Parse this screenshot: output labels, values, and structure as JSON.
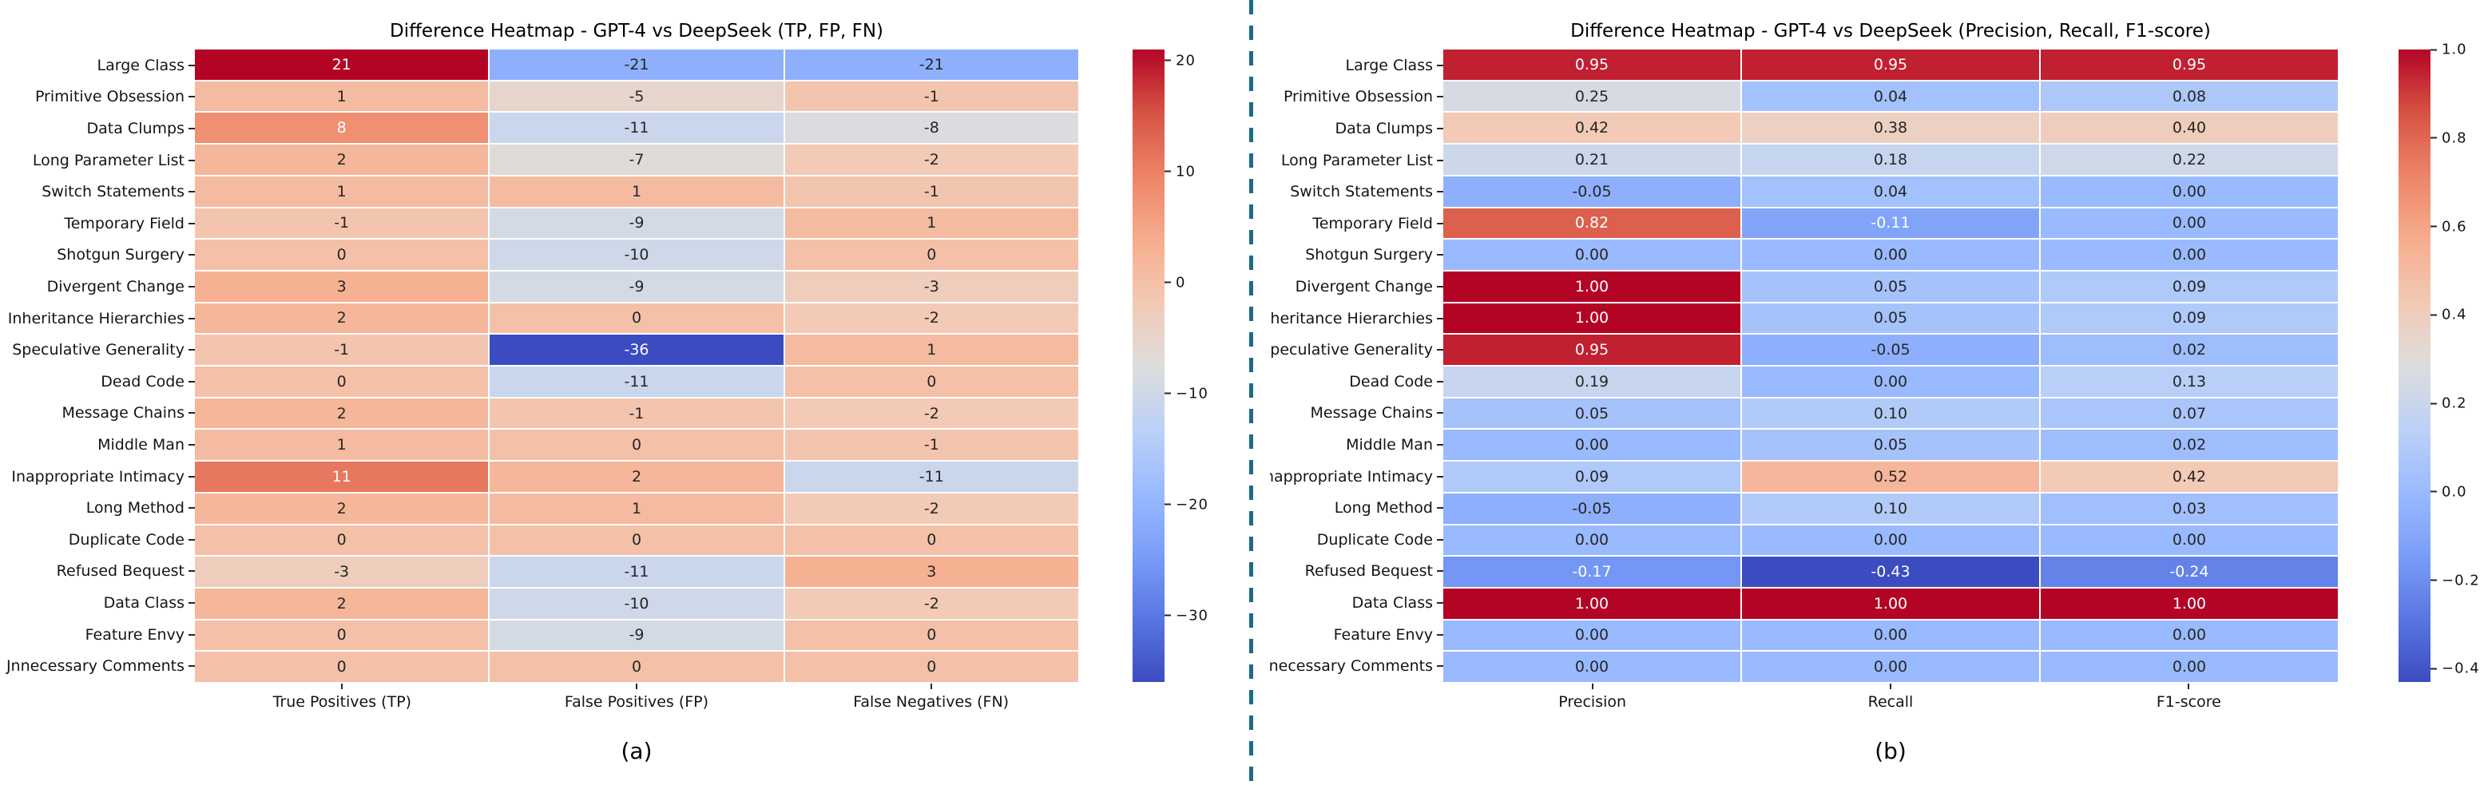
{
  "divider": {
    "color": "#1a6b8f",
    "style": "dashed-vertical"
  },
  "chart_data": [
    {
      "type": "heatmap",
      "title": "Difference Heatmap - GPT-4 vs DeepSeek (TP, FP, FN)",
      "caption": "(a)",
      "columns": [
        "True Positives (TP)",
        "False Positives (FP)",
        "False Negatives (FN)"
      ],
      "rows": [
        "Large Class",
        "Primitive Obsession",
        "Data Clumps",
        "Long Parameter List",
        "Switch Statements",
        "Temporary Field",
        "Shotgun Surgery",
        "Divergent Change",
        "Inheritance Hierarchies",
        "Speculative Generality",
        "Dead Code",
        "Message Chains",
        "Middle Man",
        "Inappropriate Intimacy",
        "Long Method",
        "Duplicate Code",
        "Refused Bequest",
        "Data Class",
        "Feature Envy",
        "Jnnecessary Comments"
      ],
      "values": [
        [
          21,
          -21,
          -21
        ],
        [
          1,
          -5,
          -1
        ],
        [
          8,
          -11,
          -8
        ],
        [
          2,
          -7,
          -2
        ],
        [
          1,
          1,
          -1
        ],
        [
          -1,
          -9,
          1
        ],
        [
          0,
          -10,
          0
        ],
        [
          3,
          -9,
          -3
        ],
        [
          2,
          0,
          -2
        ],
        [
          -1,
          -36,
          1
        ],
        [
          0,
          -11,
          0
        ],
        [
          2,
          -1,
          -2
        ],
        [
          1,
          0,
          -1
        ],
        [
          11,
          2,
          -11
        ],
        [
          2,
          1,
          -2
        ],
        [
          0,
          0,
          0
        ],
        [
          -3,
          -11,
          3
        ],
        [
          2,
          -10,
          -2
        ],
        [
          0,
          -9,
          0
        ],
        [
          0,
          0,
          0
        ]
      ],
      "value_format": "int",
      "vmin": -36,
      "vmax": 21,
      "colormap": "coolwarm",
      "legend_position": "right",
      "colorbar_ticks": [
        "20",
        "10",
        "0",
        "−10",
        "−20",
        "−30"
      ]
    },
    {
      "type": "heatmap",
      "title": "Difference Heatmap - GPT-4 vs DeepSeek (Precision, Recall, F1-score)",
      "caption": "(b)",
      "columns": [
        "Precision",
        "Recall",
        "F1-score"
      ],
      "rows": [
        "Large Class",
        "Primitive Obsession",
        "Data Clumps",
        "Long Parameter List",
        "Switch Statements",
        "Temporary Field",
        "Shotgun Surgery",
        "Divergent Change",
        "Inheritance Hierarchies",
        "Speculative Generality",
        "Dead Code",
        "Message Chains",
        "Middle Man",
        "Inappropriate Intimacy",
        "Long Method",
        "Duplicate Code",
        "Refused Bequest",
        "Data Class",
        "Feature Envy",
        "Jnnecessary Comments"
      ],
      "values": [
        [
          0.95,
          0.95,
          0.95
        ],
        [
          0.25,
          0.04,
          0.08
        ],
        [
          0.42,
          0.38,
          0.4
        ],
        [
          0.21,
          0.18,
          0.22
        ],
        [
          -0.05,
          0.04,
          0.0
        ],
        [
          0.82,
          -0.11,
          0.0
        ],
        [
          0.0,
          0.0,
          0.0
        ],
        [
          1.0,
          0.05,
          0.09
        ],
        [
          1.0,
          0.05,
          0.09
        ],
        [
          0.95,
          -0.05,
          0.02
        ],
        [
          0.19,
          0.0,
          0.13
        ],
        [
          0.05,
          0.1,
          0.07
        ],
        [
          0.0,
          0.05,
          0.02
        ],
        [
          0.09,
          0.52,
          0.42
        ],
        [
          -0.05,
          0.1,
          0.03
        ],
        [
          0.0,
          0.0,
          0.0
        ],
        [
          -0.17,
          -0.43,
          -0.24
        ],
        [
          1.0,
          1.0,
          1.0
        ],
        [
          0.0,
          0.0,
          0.0
        ],
        [
          0.0,
          0.0,
          0.0
        ]
      ],
      "value_format": "2dp",
      "vmin": -0.43,
      "vmax": 1.0,
      "colormap": "coolwarm",
      "legend_position": "right",
      "colorbar_ticks": [
        "1.0",
        "0.8",
        "0.6",
        "0.4",
        "0.2",
        "0.0",
        "−0.2",
        "−0.4"
      ]
    }
  ]
}
